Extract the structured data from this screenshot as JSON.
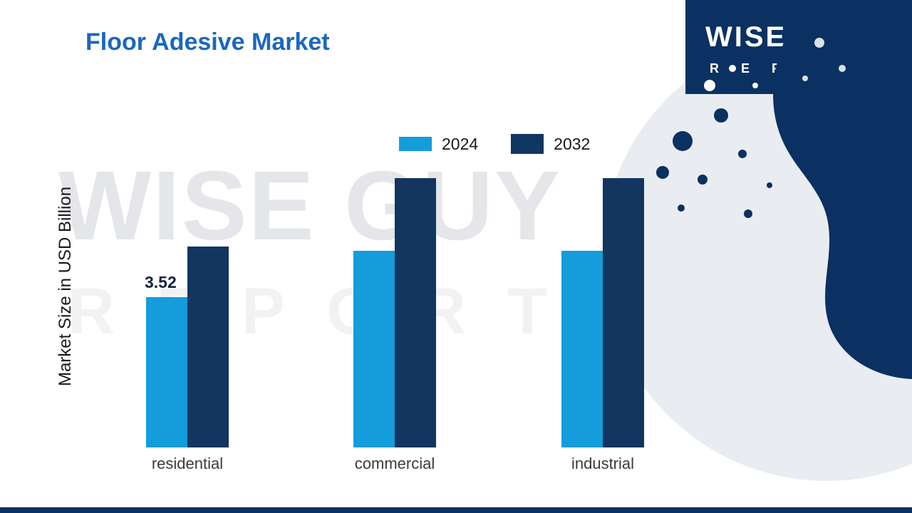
{
  "title": "Floor Adesive Market",
  "ylabel": "Market Size in USD Billion",
  "logo": {
    "line1": "WISE GUY",
    "line2": "R E P O R T S"
  },
  "watermark": {
    "line1": "WISE GUY",
    "line2": "REPORTS"
  },
  "colors": {
    "series_2024": "#149cdb",
    "series_2032": "#12365f",
    "title_blue": "#1a68bd",
    "logo_navy": "#0a3161"
  },
  "legend": [
    {
      "label": "2024"
    },
    {
      "label": "2032"
    }
  ],
  "chart_data": {
    "type": "bar",
    "categories": [
      "residential",
      "commercial",
      "industrial"
    ],
    "series": [
      {
        "name": "2024",
        "color": "#149cdb",
        "values": [
          3.52,
          4.6,
          4.6
        ]
      },
      {
        "name": "2032",
        "color": "#12365f",
        "values": [
          4.7,
          6.3,
          6.3
        ]
      }
    ],
    "title": "Floor Adesive Market",
    "xlabel": "",
    "ylabel": "Market Size in USD Billion",
    "ylim": [
      0,
      7
    ],
    "grid": false,
    "legend_position": "top-center",
    "annotations": [
      {
        "text": "3.52",
        "category": "residential",
        "series": "2024"
      }
    ]
  }
}
